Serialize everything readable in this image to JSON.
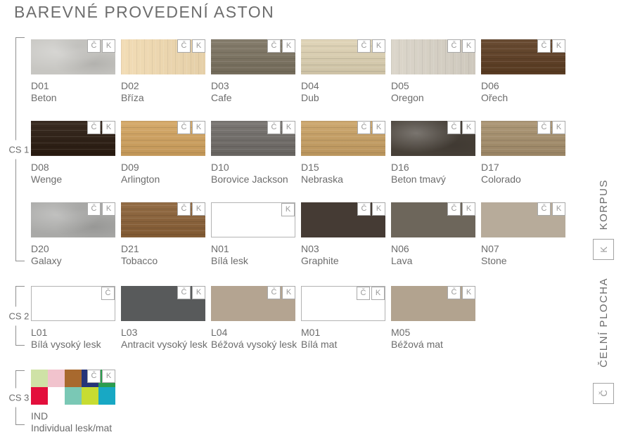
{
  "title": "BAREVNÉ PROVEDENÍ ASTON",
  "side_legend": {
    "korpus_label": "KORPUS",
    "korpus_badge": "K",
    "celni_label": "ČELNÍ PLOCHA",
    "celni_badge": "Č"
  },
  "groups": [
    {
      "id": "CS 1",
      "rows": [
        [
          {
            "code": "D01",
            "name": "Beton",
            "badges": [
              "Č",
              "K"
            ],
            "color": "#c7c6c2",
            "texture": "concrete"
          },
          {
            "code": "D02",
            "name": "Bříza",
            "badges": [
              "Č",
              "K"
            ],
            "color": "#f1dab1",
            "texture": "wood-v"
          },
          {
            "code": "D03",
            "name": "Cafe",
            "badges": [
              "Č",
              "K"
            ],
            "color": "#7b7260",
            "texture": "wood-h"
          },
          {
            "code": "D04",
            "name": "Dub",
            "badges": [
              "Č",
              "K"
            ],
            "color": "#ded2b3",
            "texture": "wood-h"
          },
          {
            "code": "D05",
            "name": "Oregon",
            "badges": [
              "Č",
              "K"
            ],
            "color": "#d9d3c7",
            "texture": "wood-v"
          },
          {
            "code": "D06",
            "name": "Ořech",
            "badges": [
              "Č",
              "K"
            ],
            "color": "#5d3d22",
            "texture": "wood-h"
          }
        ],
        [
          {
            "code": "D08",
            "name": "Wenge",
            "badges": [
              "Č",
              "K"
            ],
            "color": "#2a1b10",
            "texture": "wood-h"
          },
          {
            "code": "D09",
            "name": "Arlington",
            "badges": [
              "Č",
              "K"
            ],
            "color": "#d2a35f",
            "texture": "wood-h"
          },
          {
            "code": "D10",
            "name": "Borovice Jackson",
            "badges": [
              "Č",
              "K"
            ],
            "color": "#706c68",
            "texture": "wood-h"
          },
          {
            "code": "D15",
            "name": "Nebraska",
            "badges": [
              "Č",
              "K"
            ],
            "color": "#c9a164",
            "texture": "wood-h"
          },
          {
            "code": "D16",
            "name": "Beton tmavý",
            "badges": [
              "Č",
              "K"
            ],
            "color": "#474038",
            "texture": "concrete"
          },
          {
            "code": "D17",
            "name": "Colorado",
            "badges": [
              "Č",
              "K"
            ],
            "color": "#a68f6c",
            "texture": "wood-h"
          }
        ],
        [
          {
            "code": "D20",
            "name": "Galaxy",
            "badges": [
              "Č",
              "K"
            ],
            "color": "#a9a9a7",
            "texture": "concrete"
          },
          {
            "code": "D21",
            "name": "Tobacco",
            "badges": [
              "Č",
              "K"
            ],
            "color": "#8a6036",
            "texture": "wood-h"
          },
          {
            "code": "N01",
            "name": "Bílá lesk",
            "badges": [
              "K"
            ],
            "color": "#ffffff",
            "texture": "plain",
            "border": true
          },
          {
            "code": "N03",
            "name": "Graphite",
            "badges": [
              "Č",
              "K"
            ],
            "color": "#453b34",
            "texture": "plain"
          },
          {
            "code": "N06",
            "name": "Lava",
            "badges": [
              "Č",
              "K"
            ],
            "color": "#6d665b",
            "texture": "plain"
          },
          {
            "code": "N07",
            "name": "Stone",
            "badges": [
              "Č",
              "K"
            ],
            "color": "#b7ab9a",
            "texture": "plain"
          }
        ]
      ]
    },
    {
      "id": "CS 2",
      "rows": [
        [
          {
            "code": "L01",
            "name": "Bílá vysoký lesk",
            "badges": [
              "Č"
            ],
            "color": "#ffffff",
            "texture": "plain",
            "border": true
          },
          {
            "code": "L03",
            "name": "Antracit vysoký lesk",
            "badges": [
              "Č",
              "K"
            ],
            "color": "#585a5b",
            "texture": "plain"
          },
          {
            "code": "L04",
            "name": "Béžová vysoký lesk",
            "badges": [
              "Č",
              "K"
            ],
            "color": "#b4a491",
            "texture": "plain"
          },
          {
            "code": "M01",
            "name": "Bílá mat",
            "badges": [
              "Č",
              "K"
            ],
            "color": "#ffffff",
            "texture": "plain",
            "border": true
          },
          {
            "code": "M05",
            "name": "Béžová mat",
            "badges": [
              "Č",
              "K"
            ],
            "color": "#b2a38f",
            "texture": "plain"
          }
        ]
      ]
    },
    {
      "id": "CS 3",
      "rows": [
        [
          {
            "code": "IND",
            "name": "Individual lesk/mat",
            "badges": [
              "Č",
              "K"
            ],
            "palette": [
              "#cfe2a6",
              "#f1c3cd",
              "#a8692e",
              "#263479",
              "#2b9d4e",
              "#e30f3c",
              "#ffffff",
              "#7ac8b5",
              "#c7dc32",
              "#18a8c4"
            ]
          }
        ]
      ]
    }
  ]
}
